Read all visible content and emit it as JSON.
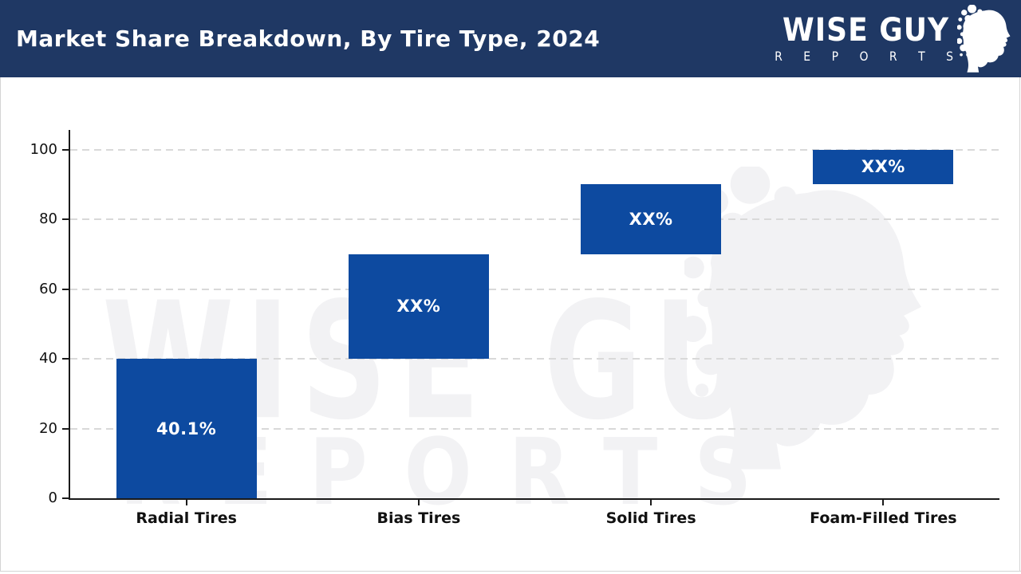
{
  "header": {
    "title": "Market Share Breakdown, By Tire Type, 2024"
  },
  "logo": {
    "line1": "WISE GUY",
    "line2": "R E P O R T S"
  },
  "watermark": {
    "line1": "WISE GUY",
    "line2": "REPORTS"
  },
  "colors": {
    "header_bg": "#1f3864",
    "bar": "#0d4aa0",
    "grid": "#d9d9d9",
    "axis": "#1a1a1a",
    "watermark": "#f2f2f4"
  },
  "chart_data": {
    "type": "bar",
    "subtype": "waterfall",
    "title": "Market Share Breakdown, By Tire Type, 2024",
    "categories": [
      "Radial Tires",
      "Bias Tires",
      "Solid Tires",
      "Foam-Filled Tires"
    ],
    "segments": [
      {
        "category": "Radial Tires",
        "start": 0,
        "end": 40,
        "label": "40.1%"
      },
      {
        "category": "Bias Tires",
        "start": 40,
        "end": 70,
        "label": "XX%"
      },
      {
        "category": "Solid Tires",
        "start": 70,
        "end": 90,
        "label": "XX%"
      },
      {
        "category": "Foam-Filled Tires",
        "start": 90,
        "end": 100,
        "label": "XX%"
      }
    ],
    "xlabel": "",
    "ylabel": "",
    "yticks": [
      0,
      20,
      40,
      60,
      80,
      100
    ],
    "ylim": [
      0,
      105.6
    ],
    "grid": "horizontal-dashed",
    "legend": "none"
  }
}
